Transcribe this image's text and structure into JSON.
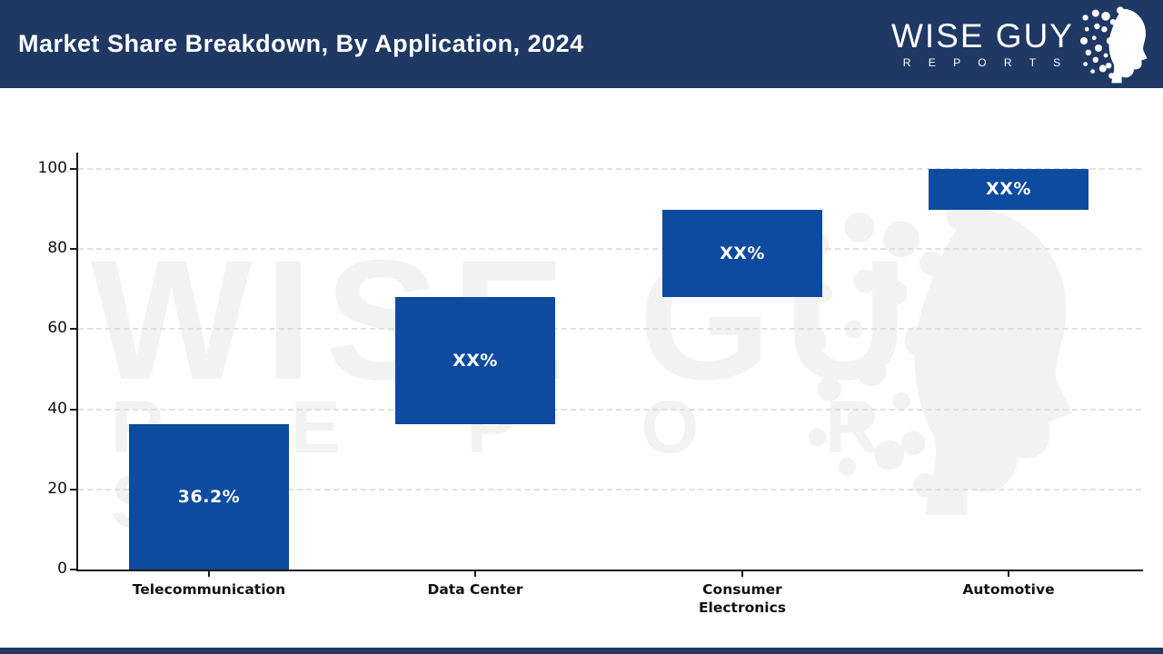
{
  "header": {
    "title": "Market Share Breakdown, By Application, 2024",
    "brand": {
      "name": "WISE GUY",
      "sub": "R E P O R T S"
    }
  },
  "watermark": {
    "line1": "WISE GUY",
    "line2": "R E P O R T S"
  },
  "colors": {
    "header_bg": "#1f3864",
    "footer_bg": "#1f3864",
    "bar": "#0c4b9e",
    "bar_label": "#ffffff",
    "axis": "#1a1a1a",
    "grid": "#e0e0e0",
    "watermark": "#f2f2f2"
  },
  "chart_data": {
    "type": "bar",
    "subtype": "waterfall-stacked",
    "title": "Market Share Breakdown, By Application, 2024",
    "xlabel": "",
    "ylabel": "",
    "ylim": [
      0,
      105
    ],
    "yticks": [
      0,
      20,
      40,
      60,
      80,
      100
    ],
    "grid": "horizontal-dashed",
    "legend": "none",
    "categories": [
      "Telecommunication",
      "Data Center",
      "Consumer Electronics",
      "Automotive"
    ],
    "segments": [
      {
        "category": "Telecommunication",
        "start": 0,
        "end": 36.2,
        "label": "36.2%"
      },
      {
        "category": "Data Center",
        "start": 36.2,
        "end": 68,
        "label": "XX%"
      },
      {
        "category": "Consumer Electronics",
        "start": 68,
        "end": 89.8,
        "label": "XX%"
      },
      {
        "category": "Automotive",
        "start": 89.8,
        "end": 100,
        "label": "XX%"
      }
    ]
  }
}
